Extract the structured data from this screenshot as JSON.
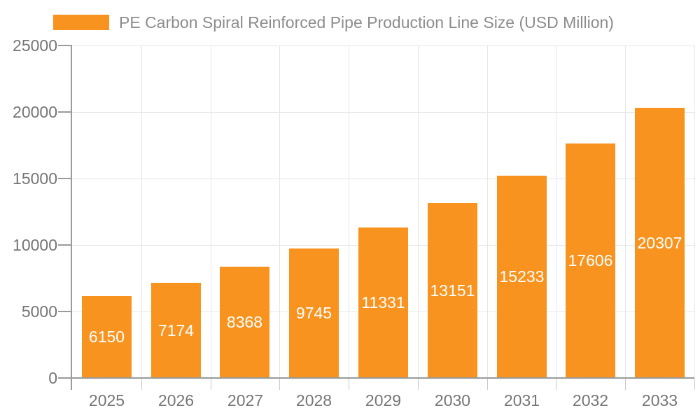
{
  "chart_data": {
    "type": "bar",
    "title": "PE Carbon Spiral Reinforced Pipe Production Line Size (USD Million)",
    "categories": [
      "2025",
      "2026",
      "2027",
      "2028",
      "2029",
      "2030",
      "2031",
      "2032",
      "2033"
    ],
    "series": [
      {
        "name": "PE Carbon Spiral Reinforced Pipe Production Line Size (USD Million)",
        "values": [
          6150,
          7174,
          8368,
          9745,
          11331,
          13151,
          15233,
          17606,
          20307
        ]
      }
    ],
    "xlabel": "",
    "ylabel": "",
    "ylim": [
      0,
      25000
    ],
    "ytick_step": 5000,
    "ytick_labels": [
      "0",
      "5000",
      "10000",
      "15000",
      "20000",
      "25000"
    ],
    "grid": true,
    "legend_position": "top-left",
    "bar_value_labels": true,
    "colors": {
      "bar": "#F7931E",
      "bar_label": "#FFFFFF",
      "axis_line": "#9B9B9B",
      "grid_line": "#E6E6E6",
      "x_tick": "#C9C9C9",
      "tick_label": "#757575",
      "legend_text": "#8C8C8C",
      "background": "#FFFFFF"
    }
  }
}
